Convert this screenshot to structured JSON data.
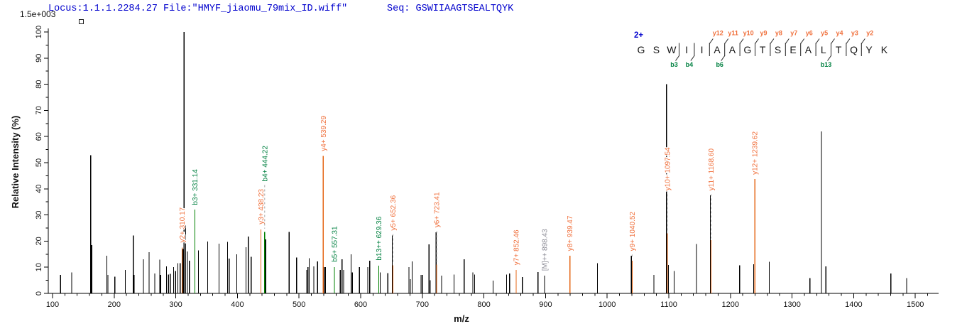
{
  "header": {
    "locus_file": "Locus:1.1.1.2284.27 File:\"HMYF_jiaomu_79mix_ID.wiff\"",
    "seq": "Seq: GSWIIAAGTSEALTQYK",
    "intensity_scale": "1.5e+003"
  },
  "sequence_panel": {
    "charge": "2+",
    "residues": [
      "G",
      "S",
      "W",
      "I",
      "I",
      "A",
      "A",
      "G",
      "T",
      "S",
      "E",
      "A",
      "L",
      "T",
      "Q",
      "Y",
      "K"
    ],
    "y_ions": [
      {
        "after_residue": 5,
        "label": "y12"
      },
      {
        "after_residue": 6,
        "label": "y11"
      },
      {
        "after_residue": 7,
        "label": "y10"
      },
      {
        "after_residue": 8,
        "label": "y9"
      },
      {
        "after_residue": 9,
        "label": "y8"
      },
      {
        "after_residue": 10,
        "label": "y7"
      },
      {
        "after_residue": 11,
        "label": "y6"
      },
      {
        "after_residue": 12,
        "label": "y5"
      },
      {
        "after_residue": 13,
        "label": "y4"
      },
      {
        "after_residue": 14,
        "label": "y3"
      },
      {
        "after_residue": 15,
        "label": "y2"
      }
    ],
    "b_ions": [
      {
        "after_residue": 3,
        "label": "b3"
      },
      {
        "after_residue": 4,
        "label": "b4"
      },
      {
        "after_residue": 6,
        "label": "b6"
      },
      {
        "after_residue": 13,
        "label": "b13"
      }
    ]
  },
  "chart_data": {
    "type": "bar",
    "subtype": "ms2-peptide-fragmentation-spectrum",
    "title": "",
    "xlabel": "m/z",
    "ylabel": "Relative  Intensity (%)",
    "xlim": [
      100,
      1530
    ],
    "ylim": [
      0,
      100
    ],
    "x_major_ticks": [
      100,
      200,
      300,
      400,
      500,
      600,
      700,
      800,
      900,
      1000,
      1100,
      1200,
      1300,
      1400,
      1500
    ],
    "x_minor_tick_step": 20,
    "y_major_tick_step": 10,
    "y_minor_tick_step": 5,
    "grid": false,
    "colors": {
      "black": "#000000",
      "orange_line": "#e56717",
      "orange_text": "#f0703c",
      "green_line": "#008000",
      "green_text": "#008040",
      "gray_text": "#8a8a94",
      "leader": "#a8a8a8",
      "header_blue": "#0000cd",
      "axis": "#000000"
    },
    "peaks": [
      [
        113,
        7,
        "k"
      ],
      [
        131,
        8,
        "k"
      ],
      [
        162,
        52.9,
        "k"
      ],
      [
        163.7,
        18.5,
        "k"
      ],
      [
        188,
        14.4,
        "k"
      ],
      [
        190,
        7,
        "k"
      ],
      [
        201,
        6.4,
        "k"
      ],
      [
        218,
        9,
        "k"
      ],
      [
        231,
        22.1,
        "k"
      ],
      [
        232.5,
        7,
        "k"
      ],
      [
        247.5,
        13,
        "k"
      ],
      [
        256.7,
        15.8,
        "k"
      ],
      [
        266,
        7.6,
        "k"
      ],
      [
        274,
        12.9,
        "k"
      ],
      [
        275.5,
        7,
        "k"
      ],
      [
        285,
        10.3,
        "k"
      ],
      [
        288,
        7.2,
        "k"
      ],
      [
        291,
        7.5,
        "k"
      ],
      [
        296.5,
        10,
        "k"
      ],
      [
        299.5,
        8.5,
        "k"
      ],
      [
        303.5,
        11.5,
        "k"
      ],
      [
        307,
        11.5,
        "k"
      ],
      [
        310.17,
        17.5,
        "o"
      ],
      [
        311.8,
        17,
        "k"
      ],
      [
        313.3,
        100,
        "k"
      ],
      [
        316,
        26,
        "k"
      ],
      [
        319,
        16,
        "k"
      ],
      [
        322,
        12.5,
        "k"
      ],
      [
        331.14,
        32,
        "g"
      ],
      [
        336.8,
        16.5,
        "k"
      ],
      [
        351.8,
        19.8,
        "k"
      ],
      [
        370,
        19,
        "k"
      ],
      [
        384,
        19.7,
        "k"
      ],
      [
        386.6,
        13.3,
        "k"
      ],
      [
        399,
        14.9,
        "k"
      ],
      [
        414,
        17.6,
        "k"
      ],
      [
        417.6,
        21.7,
        "k"
      ],
      [
        422.2,
        14,
        "k"
      ],
      [
        438.23,
        24.5,
        "o"
      ],
      [
        444.22,
        23.5,
        "g"
      ],
      [
        445.8,
        20.7,
        "k"
      ],
      [
        484,
        23.5,
        "k"
      ],
      [
        496,
        13.7,
        "k"
      ],
      [
        512.5,
        9,
        "k"
      ],
      [
        514.5,
        10,
        "k"
      ],
      [
        516.5,
        13.5,
        "k"
      ],
      [
        524,
        10.3,
        "k"
      ],
      [
        530,
        12.2,
        "k"
      ],
      [
        539.29,
        52.6,
        "o"
      ],
      [
        541,
        10,
        "k"
      ],
      [
        543,
        10,
        "k"
      ],
      [
        557.31,
        10,
        "g"
      ],
      [
        566.8,
        9,
        "k"
      ],
      [
        569.8,
        13,
        "k"
      ],
      [
        572.5,
        9,
        "k"
      ],
      [
        584.5,
        14.9,
        "k"
      ],
      [
        586.5,
        8,
        "k"
      ],
      [
        598,
        10,
        "k"
      ],
      [
        611.5,
        10,
        "k"
      ],
      [
        614.6,
        12.5,
        "k"
      ],
      [
        629.36,
        10.6,
        "g"
      ],
      [
        631.8,
        8,
        "k"
      ],
      [
        644,
        7.8,
        "k"
      ],
      [
        651.2,
        22.2,
        "k"
      ],
      [
        652.36,
        10.8,
        "o"
      ],
      [
        678.5,
        10,
        "k"
      ],
      [
        680.5,
        5.4,
        "k"
      ],
      [
        683.5,
        12.2,
        "k"
      ],
      [
        697.8,
        7,
        "k"
      ],
      [
        700,
        7,
        "k"
      ],
      [
        711,
        18.8,
        "k"
      ],
      [
        712.8,
        5,
        "k"
      ],
      [
        722.3,
        23.4,
        "k"
      ],
      [
        723.41,
        11,
        "o"
      ],
      [
        731.4,
        6.8,
        "k"
      ],
      [
        751.4,
        7.2,
        "k"
      ],
      [
        767.8,
        13,
        "k"
      ],
      [
        782,
        8,
        "k"
      ],
      [
        785,
        7.2,
        "k"
      ],
      [
        815,
        4.9,
        "k"
      ],
      [
        836.8,
        7.2,
        "k"
      ],
      [
        841.7,
        7.6,
        "k"
      ],
      [
        852.46,
        9,
        "o"
      ],
      [
        862.4,
        6.3,
        "k"
      ],
      [
        887.7,
        8.1,
        "k"
      ],
      [
        898.43,
        6.8,
        "k"
      ],
      [
        939.47,
        14.4,
        "o"
      ],
      [
        984.3,
        11.5,
        "k"
      ],
      [
        1039.2,
        14.4,
        "k"
      ],
      [
        1040.52,
        12.5,
        "o"
      ],
      [
        1075.8,
        7.1,
        "k"
      ],
      [
        1096.2,
        80,
        "k"
      ],
      [
        1097.54,
        23,
        "o"
      ],
      [
        1099.5,
        10.9,
        "k"
      ],
      [
        1108.8,
        8.5,
        "k"
      ],
      [
        1145,
        18.9,
        "k"
      ],
      [
        1167.3,
        37.5,
        "k"
      ],
      [
        1168.6,
        20.4,
        "o"
      ],
      [
        1215,
        10.8,
        "k"
      ],
      [
        1237.5,
        11.2,
        "k"
      ],
      [
        1239.62,
        43.8,
        "o"
      ],
      [
        1263,
        12.1,
        "k"
      ],
      [
        1329,
        5.8,
        "k"
      ],
      [
        1347.6,
        62,
        "k"
      ],
      [
        1355,
        10.3,
        "k"
      ],
      [
        1460.3,
        7.6,
        "k"
      ],
      [
        1486,
        5.8,
        "k"
      ]
    ],
    "annotations": [
      {
        "mz": 310.17,
        "label": "y2+ 310.17",
        "color": "orange",
        "label_from": 18.6,
        "leader_to": null
      },
      {
        "mz": 331.14,
        "label": "b3+ 331.14",
        "color": "green",
        "label_from": 33,
        "leader_to": null
      },
      {
        "mz": 438.23,
        "label": "y3+ 438.23",
        "color": "orange",
        "label_from": 25.6,
        "leader_to": null
      },
      {
        "mz": 444.22,
        "label": "b4+ 444.22",
        "color": "green",
        "label_from": 42,
        "leader_to": 24.5
      },
      {
        "mz": 539.29,
        "label": "y4+ 539.29",
        "color": "orange",
        "label_from": 53.6,
        "leader_to": null
      },
      {
        "mz": 557.31,
        "label": "b5+ 557.31",
        "color": "green",
        "label_from": 11.2,
        "leader_to": null
      },
      {
        "mz": 629.36,
        "label": "b13++ 629.36",
        "color": "green",
        "label_from": 11.8,
        "leader_to": null
      },
      {
        "mz": 652.36,
        "label": "y5+ 652.36",
        "color": "orange",
        "label_from": 23.2,
        "leader_to": 11.5
      },
      {
        "mz": 723.41,
        "label": "y6+ 723.41",
        "color": "orange",
        "label_from": 24.4,
        "leader_to": 11.8
      },
      {
        "mz": 852.46,
        "label": "y7+ 852.46",
        "color": "orange",
        "label_from": 10,
        "leader_to": null
      },
      {
        "mz": 898.43,
        "label": "[M]++ 898.43",
        "color": "gray",
        "label_from": 7.8,
        "leader_to": null
      },
      {
        "mz": 939.47,
        "label": "y8+ 939.47",
        "color": "orange",
        "label_from": 15.4,
        "leader_to": null
      },
      {
        "mz": 1040.52,
        "label": "y9+ 1040.52",
        "color": "orange",
        "label_from": 15.4,
        "leader_to": 13.2
      },
      {
        "mz": 1097.54,
        "label": "y10+ 1097.54",
        "color": "orange",
        "label_from": 38.5,
        "leader_to": 23.4
      },
      {
        "mz": 1168.6,
        "label": "y11+ 1168.60",
        "color": "orange",
        "label_from": 38.5,
        "leader_to": 20.8
      },
      {
        "mz": 1239.62,
        "label": "y12+ 1239.62",
        "color": "orange",
        "label_from": 44.6,
        "leader_to": null
      }
    ]
  }
}
